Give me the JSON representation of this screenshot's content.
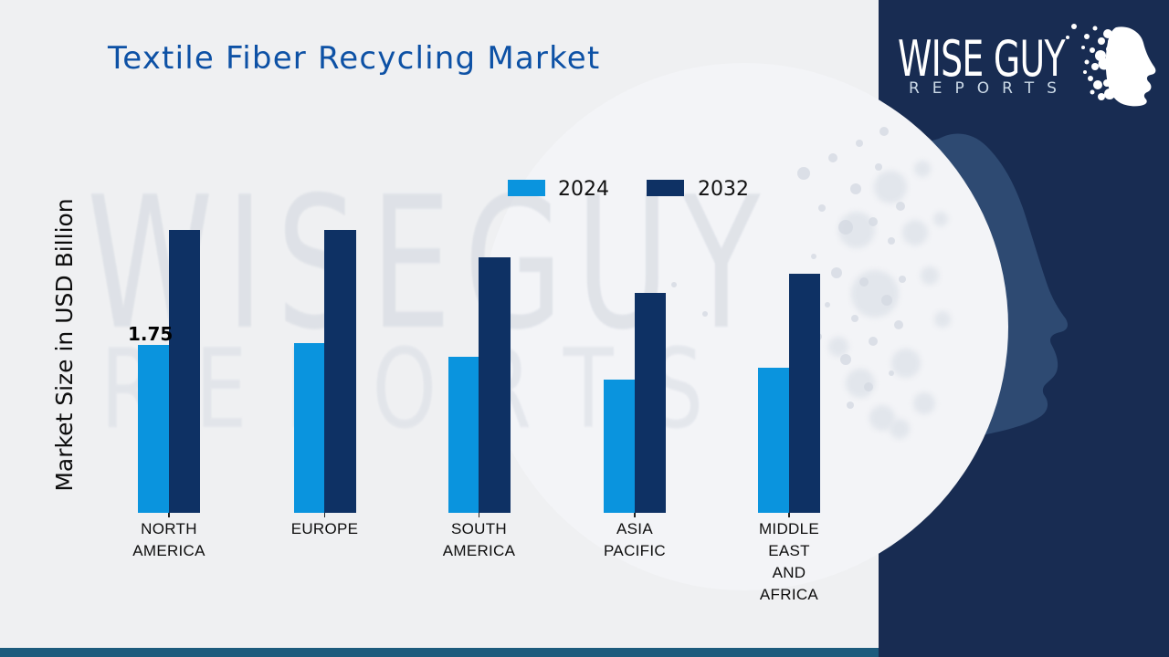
{
  "title": "Textile Fiber Recycling Market",
  "colors": {
    "title_blue": "#0d51a5",
    "bar_2024": "#0a94de",
    "bar_2032": "#0e3164",
    "panel_navy": "#182c52",
    "accent_teal": "#1d5b7d",
    "face_silhouette": "#2e4a72",
    "text_dark": "#111111"
  },
  "logo": {
    "brand_top": "WISE GUY",
    "brand_bottom": "REPORTS",
    "icon": "dotted-face-profile"
  },
  "watermark": {
    "line1": "WISEGUY",
    "line2": "REPORTS"
  },
  "legend": [
    {
      "label": "2024",
      "color": "#0a94de"
    },
    {
      "label": "2032",
      "color": "#0e3164"
    }
  ],
  "chart_data": {
    "type": "bar",
    "title": "Textile Fiber Recycling Market",
    "xlabel": "",
    "ylabel": "Market Size in USD Billion",
    "unit": "USD Billion",
    "categories": [
      "NORTH AMERICA",
      "EUROPE",
      "SOUTH AMERICA",
      "ASIA PACIFIC",
      "MIDDLE EAST AND AFRICA"
    ],
    "category_lines": [
      [
        "NORTH",
        "AMERICA"
      ],
      [
        "EUROPE"
      ],
      [
        "SOUTH",
        "AMERICA"
      ],
      [
        "ASIA",
        "PACIFIC"
      ],
      [
        "MIDDLE",
        "EAST",
        "AND",
        "AFRICA"
      ]
    ],
    "series": [
      {
        "name": "2024",
        "color": "#0a94de",
        "values": [
          1.75,
          1.77,
          1.63,
          1.39,
          1.51
        ]
      },
      {
        "name": "2032",
        "color": "#0e3164",
        "values": [
          2.95,
          2.95,
          2.67,
          2.3,
          2.5
        ]
      }
    ],
    "ylim": [
      0,
      3.3
    ],
    "grid": false,
    "legend_position": "top-center",
    "annotations": [
      {
        "text": "1.75",
        "series": "2024",
        "category": "NORTH AMERICA",
        "value": 1.75
      }
    ]
  }
}
